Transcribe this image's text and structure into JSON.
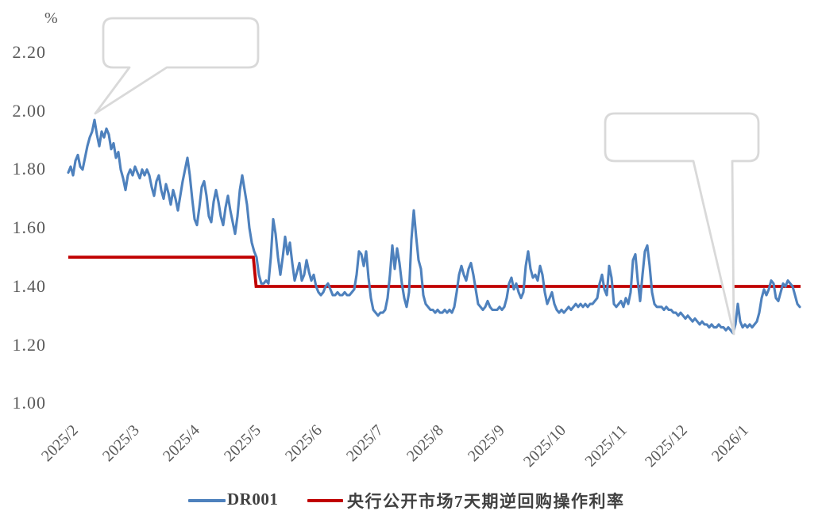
{
  "figure": {
    "unit_label": "%",
    "background_color": "#FFFFFF",
    "text_color": "#595959"
  },
  "y_axis": {
    "unit": "%",
    "ticks": [
      "2.20",
      "2.00",
      "1.80",
      "1.60",
      "1.40",
      "1.20",
      "1.00"
    ],
    "min": 1.0,
    "max": 2.2
  },
  "x_axis": {
    "ticks": [
      "2025/2",
      "2025/3",
      "2025/4",
      "2025/5",
      "2025/6",
      "2025/7",
      "2025/8",
      "2025/9",
      "2025/10",
      "2025/11",
      "2025/12",
      "2026/1"
    ]
  },
  "legend": {
    "items": [
      {
        "label": "DR001",
        "color": "#4E81BD"
      },
      {
        "label": "央行公开市场7天期逆回购操作利率",
        "color": "#C00000"
      }
    ]
  },
  "chart_data": {
    "type": "line",
    "title": "",
    "xlabel": "",
    "ylabel": "%",
    "ylim": [
      1.0,
      2.2
    ],
    "grid": false,
    "legend_position": "bottom",
    "x_tick_labels": [
      "2025/2",
      "2025/3",
      "2025/4",
      "2025/5",
      "2025/6",
      "2025/7",
      "2025/8",
      "2025/9",
      "2025/10",
      "2025/11",
      "2025/12",
      "2026/1"
    ],
    "series": [
      {
        "name": "DR001",
        "color": "#4E81BD",
        "type": "line",
        "x_start": "2025/2",
        "x_end": "2026/1",
        "sampling": "approx-daily",
        "values": [
          1.79,
          1.81,
          1.78,
          1.83,
          1.85,
          1.81,
          1.8,
          1.84,
          1.88,
          1.91,
          1.93,
          1.97,
          1.92,
          1.88,
          1.93,
          1.91,
          1.94,
          1.92,
          1.87,
          1.89,
          1.84,
          1.86,
          1.8,
          1.77,
          1.73,
          1.78,
          1.8,
          1.78,
          1.81,
          1.79,
          1.77,
          1.8,
          1.78,
          1.8,
          1.78,
          1.74,
          1.71,
          1.76,
          1.78,
          1.73,
          1.7,
          1.75,
          1.72,
          1.68,
          1.73,
          1.7,
          1.66,
          1.71,
          1.76,
          1.8,
          1.84,
          1.78,
          1.7,
          1.63,
          1.61,
          1.67,
          1.74,
          1.76,
          1.71,
          1.64,
          1.62,
          1.69,
          1.73,
          1.69,
          1.64,
          1.61,
          1.67,
          1.71,
          1.66,
          1.62,
          1.58,
          1.64,
          1.73,
          1.78,
          1.73,
          1.68,
          1.6,
          1.55,
          1.52,
          1.5,
          1.44,
          1.41,
          1.41,
          1.42,
          1.41,
          1.5,
          1.63,
          1.58,
          1.5,
          1.44,
          1.5,
          1.57,
          1.51,
          1.55,
          1.48,
          1.42,
          1.45,
          1.48,
          1.42,
          1.44,
          1.49,
          1.45,
          1.42,
          1.44,
          1.4,
          1.38,
          1.37,
          1.38,
          1.4,
          1.41,
          1.39,
          1.37,
          1.37,
          1.38,
          1.37,
          1.37,
          1.38,
          1.37,
          1.37,
          1.38,
          1.39,
          1.44,
          1.52,
          1.51,
          1.47,
          1.52,
          1.43,
          1.36,
          1.32,
          1.31,
          1.3,
          1.31,
          1.31,
          1.32,
          1.36,
          1.44,
          1.54,
          1.46,
          1.53,
          1.48,
          1.41,
          1.36,
          1.33,
          1.38,
          1.56,
          1.66,
          1.57,
          1.49,
          1.46,
          1.37,
          1.34,
          1.33,
          1.32,
          1.32,
          1.31,
          1.32,
          1.31,
          1.31,
          1.32,
          1.31,
          1.32,
          1.31,
          1.33,
          1.38,
          1.44,
          1.47,
          1.44,
          1.42,
          1.46,
          1.48,
          1.44,
          1.39,
          1.34,
          1.33,
          1.32,
          1.33,
          1.35,
          1.33,
          1.32,
          1.32,
          1.32,
          1.33,
          1.32,
          1.33,
          1.36,
          1.41,
          1.43,
          1.39,
          1.41,
          1.38,
          1.36,
          1.38,
          1.47,
          1.52,
          1.46,
          1.43,
          1.44,
          1.42,
          1.47,
          1.44,
          1.38,
          1.34,
          1.36,
          1.38,
          1.34,
          1.32,
          1.31,
          1.32,
          1.31,
          1.32,
          1.33,
          1.32,
          1.33,
          1.34,
          1.33,
          1.34,
          1.33,
          1.34,
          1.33,
          1.34,
          1.34,
          1.35,
          1.36,
          1.41,
          1.44,
          1.39,
          1.37,
          1.47,
          1.43,
          1.34,
          1.33,
          1.34,
          1.35,
          1.33,
          1.36,
          1.34,
          1.38,
          1.49,
          1.51,
          1.42,
          1.35,
          1.44,
          1.52,
          1.54,
          1.47,
          1.38,
          1.34,
          1.33,
          1.33,
          1.33,
          1.32,
          1.33,
          1.32,
          1.32,
          1.31,
          1.31,
          1.3,
          1.31,
          1.3,
          1.29,
          1.3,
          1.29,
          1.28,
          1.29,
          1.28,
          1.27,
          1.28,
          1.27,
          1.27,
          1.26,
          1.27,
          1.26,
          1.26,
          1.27,
          1.26,
          1.26,
          1.25,
          1.26,
          1.25,
          1.24,
          1.27,
          1.34,
          1.28,
          1.26,
          1.27,
          1.26,
          1.27,
          1.26,
          1.27,
          1.28,
          1.31,
          1.36,
          1.39,
          1.37,
          1.39,
          1.42,
          1.41,
          1.36,
          1.35,
          1.38,
          1.41,
          1.4,
          1.42,
          1.41,
          1.4,
          1.37,
          1.34,
          1.33
        ]
      },
      {
        "name": "央行公开市场7天期逆回购操作利率",
        "color": "#C00000",
        "type": "step-line",
        "segments": [
          {
            "from_x": "2025/2",
            "to_x": "2025/5",
            "value": 1.5
          },
          {
            "from_x": "2025/5",
            "to_x": "2026/1",
            "value": 1.4
          }
        ]
      }
    ],
    "annotations": [
      {
        "type": "empty-callout",
        "text": "",
        "points_to": {
          "x": "2025/2",
          "y": 1.97
        }
      },
      {
        "type": "empty-callout",
        "text": "",
        "points_to": {
          "x": "2025/12",
          "y": 1.24
        }
      }
    ]
  }
}
